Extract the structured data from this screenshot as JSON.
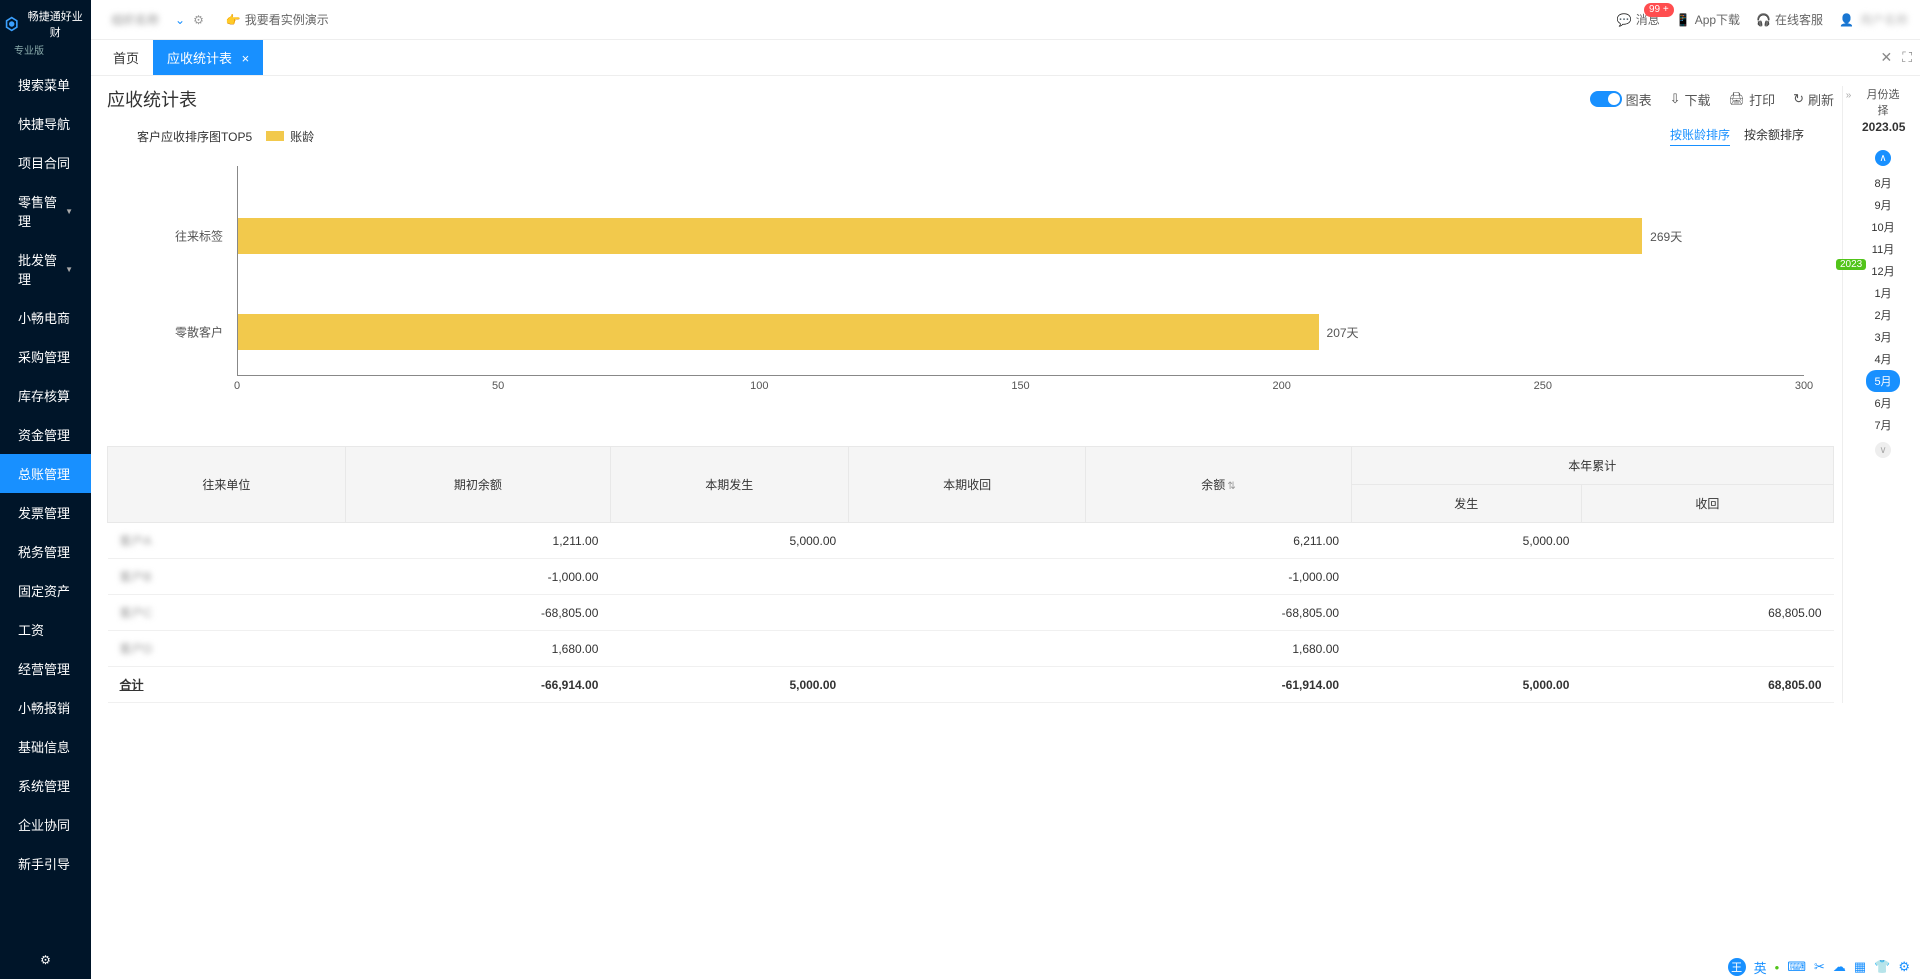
{
  "app": {
    "brand": "畅捷通好业财",
    "edition": "专业版"
  },
  "sidebar": {
    "items": [
      {
        "label": "搜索菜单",
        "has_caret": false
      },
      {
        "label": "快捷导航",
        "has_caret": false
      },
      {
        "label": "项目合同",
        "has_caret": false
      },
      {
        "label": "零售管理",
        "has_caret": true
      },
      {
        "label": "批发管理",
        "has_caret": true
      },
      {
        "label": "小畅电商",
        "has_caret": false
      },
      {
        "label": "采购管理",
        "has_caret": false
      },
      {
        "label": "库存核算",
        "has_caret": false
      },
      {
        "label": "资金管理",
        "has_caret": false
      },
      {
        "label": "总账管理",
        "has_caret": false,
        "active": true
      },
      {
        "label": "发票管理",
        "has_caret": false
      },
      {
        "label": "税务管理",
        "has_caret": false
      },
      {
        "label": "固定资产",
        "has_caret": false
      },
      {
        "label": "工资",
        "has_caret": false
      },
      {
        "label": "经营管理",
        "has_caret": false
      },
      {
        "label": "小畅报销",
        "has_caret": false
      },
      {
        "label": "基础信息",
        "has_caret": false
      },
      {
        "label": "系统管理",
        "has_caret": false
      },
      {
        "label": "企业协同",
        "has_caret": false
      },
      {
        "label": "新手引导",
        "has_caret": false
      }
    ]
  },
  "header": {
    "org": "组织名称",
    "demo": "我要看实例演示",
    "messages_label": "消息",
    "messages_badge": "99 +",
    "download_label": "App下载",
    "service_label": "在线客服",
    "user": "用户名称"
  },
  "tabs": {
    "home": "首页",
    "active": "应收统计表"
  },
  "page": {
    "title": "应收统计表",
    "toggle_label": "图表",
    "download_label": "下载",
    "print_label": "打印",
    "refresh_label": "刷新"
  },
  "chart": {
    "title": "客户应收排序图TOP5",
    "legend_label": "账龄",
    "legend_color": "#f2c94c",
    "sort_by_age": "按账龄排序",
    "sort_by_amount": "按余额排序",
    "bars": [
      {
        "label": "往来标签",
        "value": 269,
        "display": "269天"
      },
      {
        "label": "零散客户",
        "value": 207,
        "display": "207天"
      }
    ],
    "x_max": 300,
    "x_step": 50,
    "bar_color": "#f2c94c",
    "background_color": "#ffffff"
  },
  "table": {
    "columns": {
      "party": "往来单位",
      "opening": "期初余额",
      "occur": "本期发生",
      "receive": "本期收回",
      "balance": "余额",
      "ytd": "本年累计",
      "ytd_occur": "发生",
      "ytd_receive": "收回"
    },
    "rows": [
      {
        "party": "客户A",
        "opening": "1,211.00",
        "occur": "5,000.00",
        "receive": "",
        "balance": "6,211.00",
        "ytd_occur": "5,000.00",
        "ytd_receive": ""
      },
      {
        "party": "客户B",
        "opening": "-1,000.00",
        "occur": "",
        "receive": "",
        "balance": "-1,000.00",
        "ytd_occur": "",
        "ytd_receive": ""
      },
      {
        "party": "客户C",
        "opening": "-68,805.00",
        "occur": "",
        "receive": "",
        "balance": "-68,805.00",
        "ytd_occur": "",
        "ytd_receive": "68,805.00"
      },
      {
        "party": "客户D",
        "opening": "1,680.00",
        "occur": "",
        "receive": "",
        "balance": "1,680.00",
        "ytd_occur": "",
        "ytd_receive": ""
      }
    ],
    "total": {
      "label": "合计",
      "opening": "-66,914.00",
      "occur": "5,000.00",
      "receive": "",
      "balance": "-61,914.00",
      "ytd_occur": "5,000.00",
      "ytd_receive": "68,805.00"
    }
  },
  "month_panel": {
    "title": "月份选择",
    "selected": "2023.05",
    "year_badge": "2023",
    "months": [
      "8月",
      "9月",
      "10月",
      "11月",
      "12月",
      "1月",
      "2月",
      "3月",
      "4月",
      "5月",
      "6月",
      "7月"
    ],
    "active_index": 9
  },
  "taskbar": {
    "ime": "王",
    "lang": "英"
  }
}
